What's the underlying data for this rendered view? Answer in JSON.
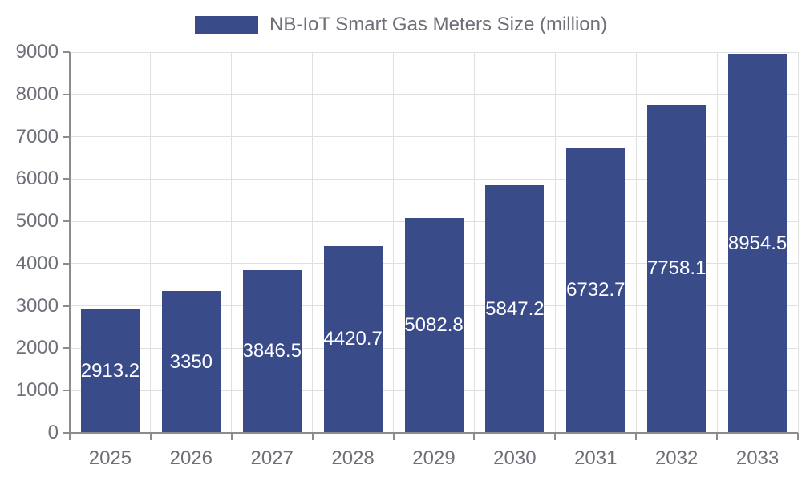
{
  "legend": {
    "label": "NB-IoT Smart Gas Meters Size (million)"
  },
  "chart_data": {
    "type": "bar",
    "title": "NB-IoT Smart Gas Meters Size (million)",
    "categories": [
      "2025",
      "2026",
      "2027",
      "2028",
      "2029",
      "2030",
      "2031",
      "2032",
      "2033"
    ],
    "values": [
      2913.2,
      3350,
      3846.5,
      4420.7,
      5082.8,
      5847.2,
      6732.7,
      7758.1,
      8954.5
    ],
    "value_labels": [
      "2913.2",
      "3350",
      "3846.5",
      "4420.7",
      "5082.8",
      "5847.2",
      "6732.7",
      "7758.1",
      "8954.5"
    ],
    "series_name": "NB-IoT Smart Gas Meters Size (million)",
    "xlabel": "",
    "ylabel": "",
    "ylim": [
      0,
      9000
    ],
    "y_ticks": [
      0,
      1000,
      2000,
      3000,
      4000,
      5000,
      6000,
      7000,
      8000,
      9000
    ],
    "grid": true,
    "legend_position": "top-center",
    "value_label_position": "inside-center"
  },
  "colors": {
    "bar": "#3a4b8a",
    "grid": "#e0e0e0",
    "axis": "#8c8c8c",
    "text": "#6e7079",
    "value_label": "#ffffff",
    "background": "#ffffff"
  }
}
